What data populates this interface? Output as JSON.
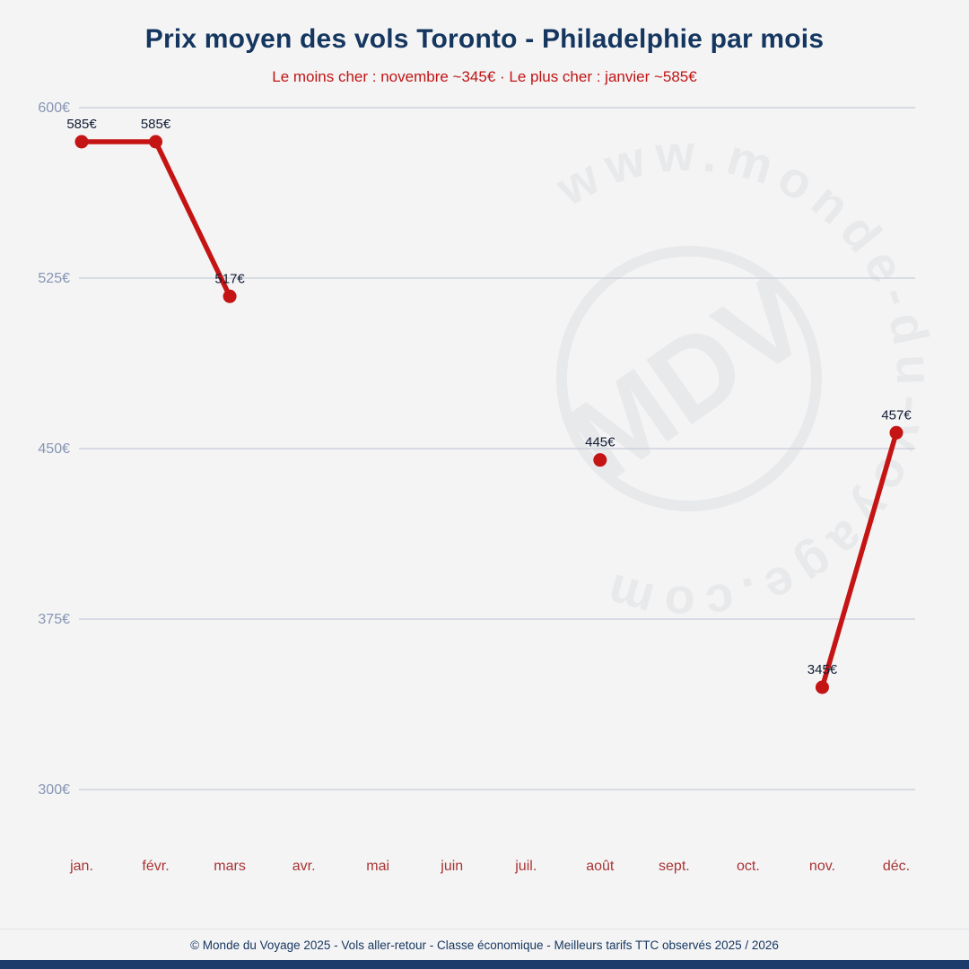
{
  "chart_data": {
    "type": "line",
    "title": "Prix moyen des vols Toronto - Philadelphie par mois",
    "subtitle": "Le moins cher : novembre ~345€ · Le plus cher : janvier ~585€",
    "categories": [
      "jan.",
      "févr.",
      "mars",
      "avr.",
      "mai",
      "juin",
      "juil.",
      "août",
      "sept.",
      "oct.",
      "nov.",
      "déc."
    ],
    "values": [
      585,
      585,
      517,
      null,
      null,
      null,
      null,
      445,
      null,
      null,
      345,
      457
    ],
    "point_labels": [
      "585€",
      "585€",
      "517€",
      null,
      null,
      null,
      null,
      "445€",
      null,
      null,
      "345€",
      "457€"
    ],
    "xlabel": "",
    "ylabel": "",
    "ylim": [
      300,
      600
    ],
    "yticks": [
      300,
      375,
      450,
      525,
      600
    ],
    "ytick_labels": [
      "300€",
      "375€",
      "450€",
      "525€",
      "600€"
    ],
    "grid": true,
    "legend_position": "none"
  },
  "watermark": {
    "circle_text": "www.monde-du-voyage.com",
    "center_text": "MDV"
  },
  "footer": {
    "text": "© Monde du Voyage 2025 - Vols aller-retour - Classe économique - Meilleurs tarifs TTC observés 2025 / 2026"
  },
  "colors": {
    "background": "#f4f4f5",
    "title": "#14365f",
    "subtitle": "#c01414",
    "grid": "#c7ccd9",
    "y_axis_labels": "#8695b2",
    "x_axis_labels": "#a93434",
    "line": "#c41414",
    "point": "#c41414",
    "point_labels": "#101c33",
    "watermark": "#e7e8eb",
    "footer_text": "#14365f",
    "footer_bar": "#1d3c6b"
  }
}
